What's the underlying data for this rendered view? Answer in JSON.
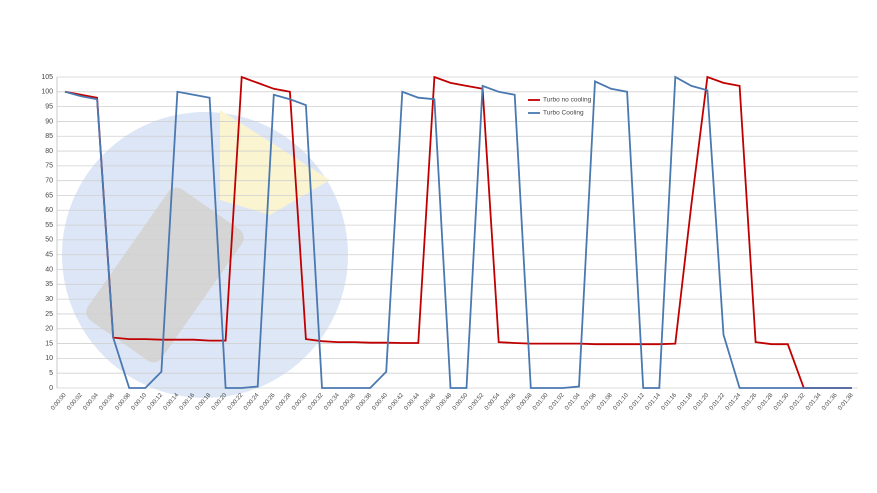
{
  "chart_data": {
    "type": "line",
    "categories": [
      "0:00:00",
      "0:00:02",
      "0:00:04",
      "0:00:06",
      "0:00:08",
      "0:00:10",
      "0:00:12",
      "0:00:14",
      "0:00:16",
      "0:00:18",
      "0:00:20",
      "0:00:22",
      "0:00:24",
      "0:00:26",
      "0:00:28",
      "0:00:30",
      "0:00:32",
      "0:00:34",
      "0:00:36",
      "0:00:38",
      "0:00:40",
      "0:00:42",
      "0:00:44",
      "0:00:46",
      "0:00:48",
      "0:00:50",
      "0:00:52",
      "0:00:54",
      "0:00:56",
      "0:00:58",
      "0:01:00",
      "0:01:02",
      "0:01:04",
      "0:01:06",
      "0:01:08",
      "0:01:10",
      "0:01:12",
      "0:01:14",
      "0:01:16",
      "0:01:18",
      "0:01:20",
      "0:01:22",
      "0:01:24",
      "0:01:26",
      "0:01:28",
      "0:01:30",
      "0:01:32",
      "0:01:34",
      "0:01:36",
      "0:01:38"
    ],
    "series": [
      {
        "name": "Turbo no cooling",
        "color": "#c00000",
        "values": [
          100,
          99,
          98,
          17,
          16.5,
          16.5,
          16.3,
          16.3,
          16.3,
          16,
          16,
          105,
          103,
          101,
          100,
          16.5,
          15.8,
          15.5,
          15.5,
          15.3,
          15.3,
          15.2,
          15.2,
          105,
          103,
          102,
          101,
          15.5,
          15.2,
          15,
          15,
          15,
          15,
          14.8,
          14.8,
          14.8,
          14.8,
          14.8,
          15,
          62,
          105,
          103,
          102,
          15.5,
          14.8,
          14.8,
          0,
          0,
          0,
          0
        ]
      },
      {
        "name": "Turbo Cooling",
        "color": "#4a78b0",
        "values": [
          100,
          98.5,
          97.5,
          17,
          0,
          0,
          5.5,
          100,
          99,
          98,
          0,
          0,
          0.5,
          99,
          97.5,
          95.5,
          0,
          0,
          0,
          0,
          5.5,
          100,
          98,
          97.5,
          0,
          0,
          102,
          100,
          99,
          0,
          0,
          0,
          0.5,
          103.5,
          101,
          100,
          0,
          0,
          105,
          102,
          100.5,
          18,
          0,
          0,
          0,
          0,
          0,
          0,
          0,
          0
        ]
      }
    ],
    "ylim": [
      0,
      105
    ],
    "yticks": [
      0,
      5,
      10,
      15,
      20,
      25,
      30,
      35,
      40,
      45,
      50,
      55,
      60,
      65,
      70,
      75,
      80,
      85,
      90,
      95,
      100,
      105
    ],
    "grid": true,
    "legend": "top"
  }
}
